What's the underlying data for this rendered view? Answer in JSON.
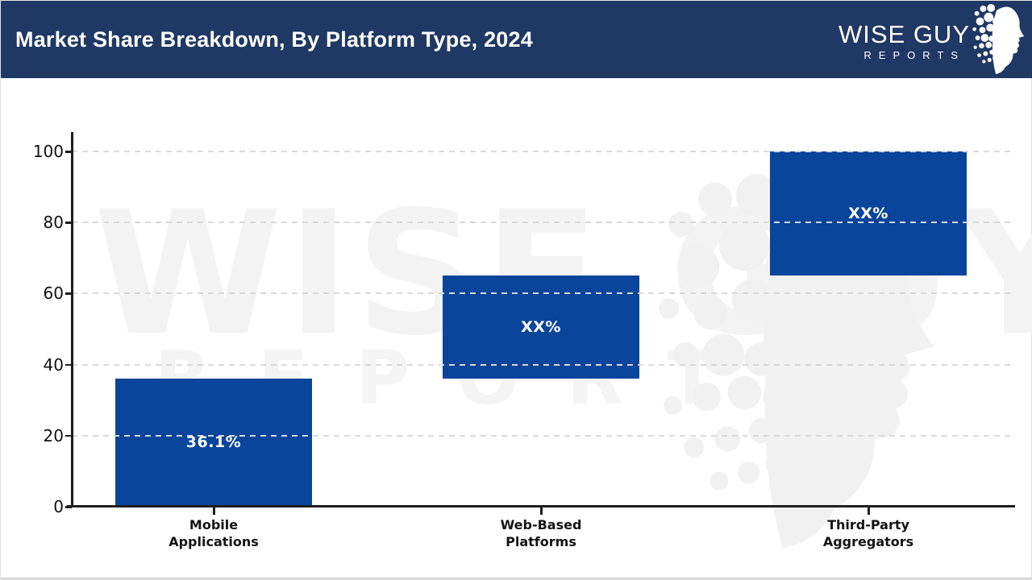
{
  "header": {
    "title": "Market Share Breakdown, By Platform Type, 2024",
    "bg_color": "#1f3864",
    "logo": {
      "line1": "WISE GUY",
      "line2": "REPORTS"
    }
  },
  "watermark": {
    "line1": "WISE GUY",
    "line2": "REPORTS"
  },
  "chart_data": {
    "type": "bar",
    "subtype": "floating-stacked-segments",
    "title": "Market Share Breakdown, By Platform Type, 2024",
    "categories": [
      "Mobile Applications",
      "Web-Based Platforms",
      "Third-Party Aggregators"
    ],
    "category_lines": [
      [
        "Mobile",
        "Applications"
      ],
      [
        "Web-Based",
        "Platforms"
      ],
      [
        "Third-Party",
        "Aggregators"
      ]
    ],
    "series": [
      {
        "name": "Market Share %",
        "segments": [
          {
            "category": "Mobile Applications",
            "start": 0,
            "end": 36.1,
            "label": "36.1%"
          },
          {
            "category": "Web-Based Platforms",
            "start": 36.1,
            "end": 65,
            "label": "XX%"
          },
          {
            "category": "Third-Party Aggregators",
            "start": 65,
            "end": 100,
            "label": "XX%"
          }
        ]
      }
    ],
    "bar_color": "#0a459c",
    "bar_label_color": "#ffffff",
    "ylim": [
      0,
      100
    ],
    "yticks": [
      0,
      20,
      40,
      60,
      80,
      100
    ],
    "grid": "horizontal dashed",
    "gridline_color": "#d9d9d9",
    "xlabel": "",
    "ylabel": "",
    "legend": "none"
  }
}
